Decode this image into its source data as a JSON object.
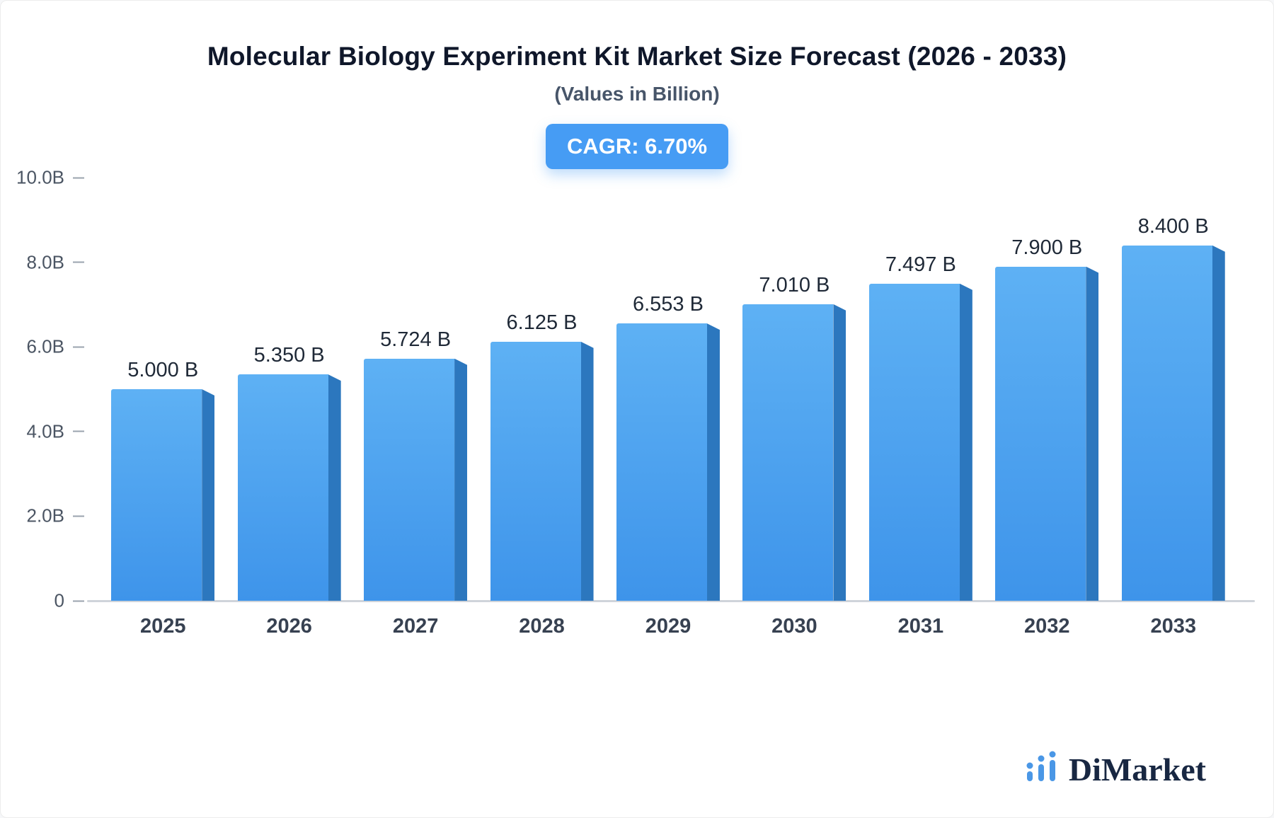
{
  "header": {
    "title": "Molecular Biology Experiment Kit Market Size Forecast (2026 - 2033)",
    "subtitle": "(Values in Billion)"
  },
  "badge": {
    "label": "CAGR: 6.70%",
    "background": "#469CF4"
  },
  "chart_data": {
    "type": "bar",
    "title": "Molecular Biology Experiment Kit Market Size Forecast (2026 - 2033)",
    "subtitle": "(Values in Billion)",
    "xlabel": "",
    "ylabel": "",
    "categories": [
      "2025",
      "2026",
      "2027",
      "2028",
      "2029",
      "2030",
      "2031",
      "2032",
      "2033"
    ],
    "values": [
      5.0,
      5.35,
      5.724,
      6.125,
      6.553,
      7.01,
      7.497,
      7.9,
      8.4
    ],
    "value_labels": [
      "5.000 B",
      "5.350 B",
      "5.724 B",
      "6.125 B",
      "6.553 B",
      "7.010 B",
      "7.497 B",
      "7.900 B",
      "8.400 B"
    ],
    "ylim": [
      0,
      10
    ],
    "yticks": [
      0,
      2,
      4,
      6,
      8,
      10
    ],
    "ytick_labels": [
      "0",
      "2.0B",
      "4.0B",
      "6.0B",
      "8.0B",
      "10.0B"
    ],
    "grid": "off",
    "legend": "none",
    "colors": {
      "front_top": "#5EB1F4",
      "front_bottom": "#3E94EA",
      "side": "#2C77BE",
      "axis": "#cfd4da",
      "tick": "#9aa3ae"
    }
  },
  "footer": {
    "brand": "DiMarket",
    "logo_icon": "bar-chart-icon",
    "logo_color": "#4a97e6"
  }
}
